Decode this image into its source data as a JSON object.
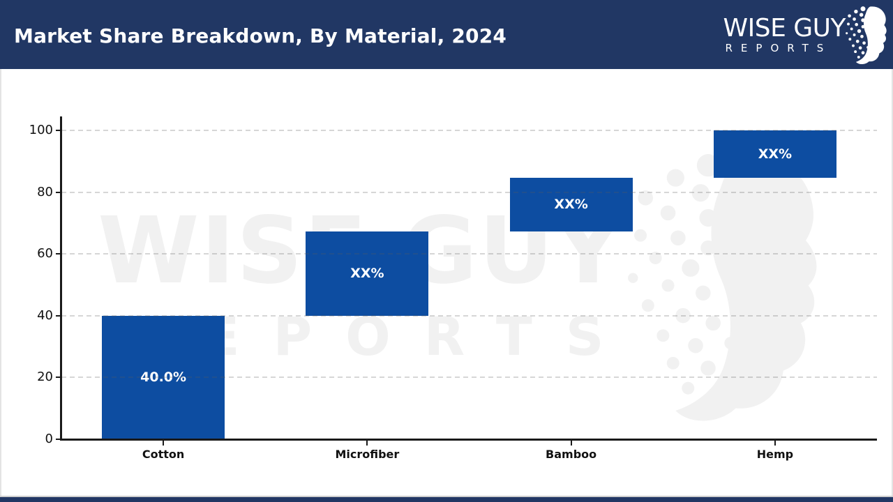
{
  "header": {
    "title": "Market Share Breakdown, By Material, 2024",
    "logo": {
      "wordmark": "WISE GUY",
      "subtext": "REPORTS"
    }
  },
  "watermark": {
    "line1": "WISE GUY",
    "line2": "REPORTS"
  },
  "colors": {
    "header_bg": "#213764",
    "bar": "#0D4DA1",
    "footer_bar": "#213764",
    "watermark": "#f1f1f1"
  },
  "chart_data": {
    "type": "bar",
    "variant": "waterfall",
    "title": "Market Share Breakdown, By Material, 2024",
    "categories": [
      "Cotton",
      "Microfiber",
      "Bamboo",
      "Hemp"
    ],
    "bars": [
      {
        "category": "Cotton",
        "from": 0,
        "to": 40,
        "label": "40.0%"
      },
      {
        "category": "Microfiber",
        "from": 40,
        "to": 67.3,
        "label": "XX%"
      },
      {
        "category": "Bamboo",
        "from": 67.3,
        "to": 84.7,
        "label": "XX%"
      },
      {
        "category": "Hemp",
        "from": 84.7,
        "to": 100,
        "label": "XX%"
      }
    ],
    "ylim": [
      0,
      100
    ],
    "yticks": [
      0,
      20,
      40,
      60,
      80,
      100
    ],
    "xlabel": "",
    "ylabel": "",
    "legend": "none",
    "grid": "dashed-horizontal"
  }
}
